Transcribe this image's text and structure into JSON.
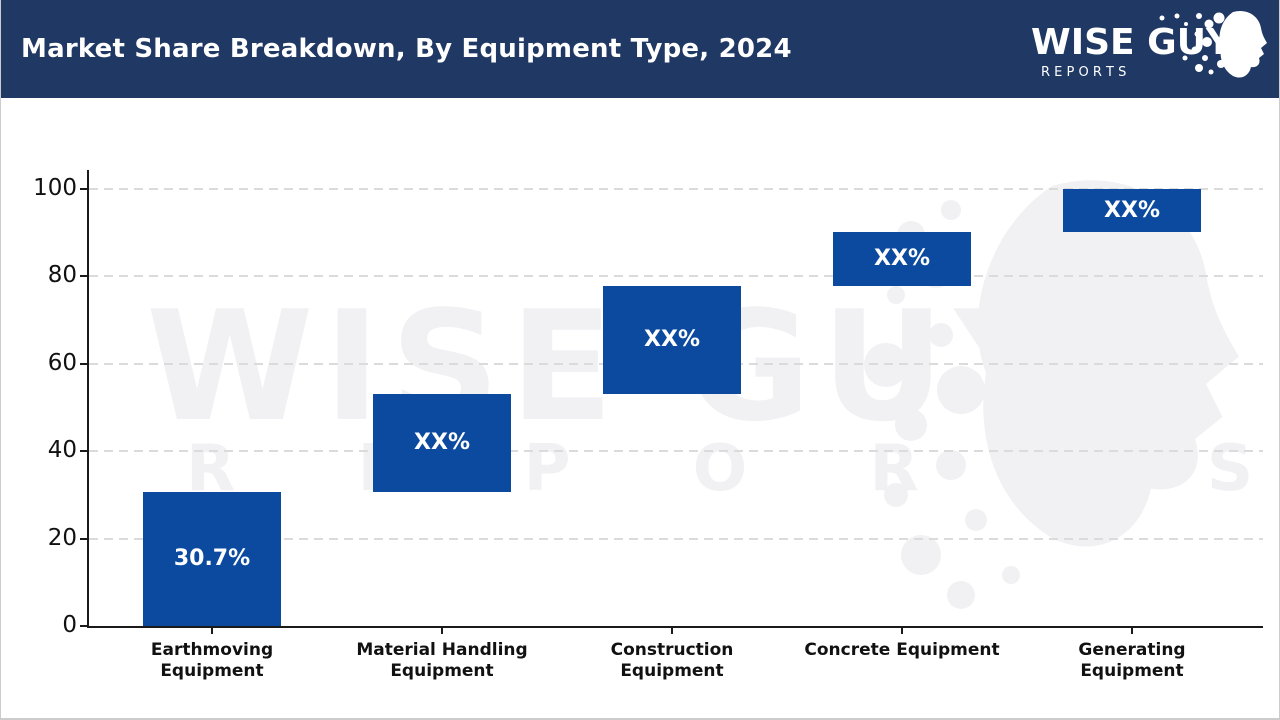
{
  "header": {
    "title": "Market Share Breakdown, By Equipment Type, 2024",
    "bg_color": "#203864",
    "logo": {
      "line1": "WISE GUY",
      "line2": "R E P O R T S"
    }
  },
  "watermark": {
    "line1": "WISE GUY",
    "line2": "R E P O R T S"
  },
  "chart_data": {
    "type": "bar",
    "variant": "waterfall",
    "title": "Market Share Breakdown, By Equipment Type, 2024",
    "categories": [
      [
        "Earthmoving",
        "Equipment"
      ],
      [
        "Material Handling",
        "Equipment"
      ],
      [
        "Construction",
        "Equipment"
      ],
      [
        "Concrete Equipment"
      ],
      [
        "Generating",
        "Equipment"
      ]
    ],
    "segments": [
      {
        "name": "Earthmoving Equipment",
        "start": 0,
        "end": 30.7,
        "label": "30.7%"
      },
      {
        "name": "Material Handling Equipment",
        "start": 30.7,
        "end": 53.1,
        "label": "XX%"
      },
      {
        "name": "Construction Equipment",
        "start": 53.1,
        "end": 77.8,
        "label": "XX%"
      },
      {
        "name": "Concrete Equipment",
        "start": 77.8,
        "end": 90.1,
        "label": "XX%"
      },
      {
        "name": "Generating Equipment",
        "start": 90.1,
        "end": 100,
        "label": "XX%"
      }
    ],
    "yticks": [
      0,
      20,
      40,
      60,
      80,
      100
    ],
    "ylim": [
      0,
      104
    ],
    "xlabel": "",
    "ylabel": "",
    "grid": "horizontal-dashed",
    "legend": "none",
    "colors": {
      "bar": "#0b4a9f",
      "bar_label": "#ffffff",
      "axis": "#1a1a1a",
      "grid": "#dbdbdb",
      "header_bg": "#203864",
      "watermark": "#f1f1f4"
    }
  }
}
